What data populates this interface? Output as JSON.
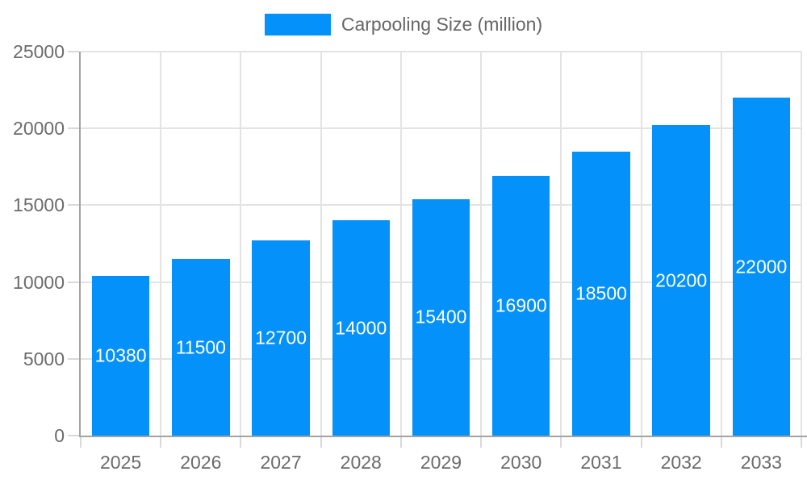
{
  "legend": {
    "label": "Carpooling Size (million)"
  },
  "chart_data": {
    "type": "bar",
    "categories": [
      "2025",
      "2026",
      "2027",
      "2028",
      "2029",
      "2030",
      "2031",
      "2032",
      "2033"
    ],
    "series": [
      {
        "name": "Carpooling Size (million)",
        "color": "#0591fa",
        "values": [
          10380,
          11500,
          12700,
          14000,
          15400,
          16900,
          18500,
          20200,
          22000
        ]
      }
    ],
    "data_labels": [
      "10380",
      "11500",
      "12700",
      "14000",
      "15400",
      "16900",
      "18500",
      "20200",
      "22000"
    ],
    "xlabel": "",
    "ylabel": "",
    "ylim": [
      0,
      25000
    ],
    "y_ticks": [
      0,
      5000,
      10000,
      15000,
      20000,
      25000
    ],
    "grid": true,
    "legend_position": "top",
    "colors": {
      "grid": "#e3e3e3",
      "tick_mark": "#d9d9d9",
      "axis": "#a3a3a3",
      "tick_text": "#6b6b6b",
      "legend_text": "#666666",
      "bar_label_text": "#ffffff",
      "background": "#ffffff"
    }
  }
}
